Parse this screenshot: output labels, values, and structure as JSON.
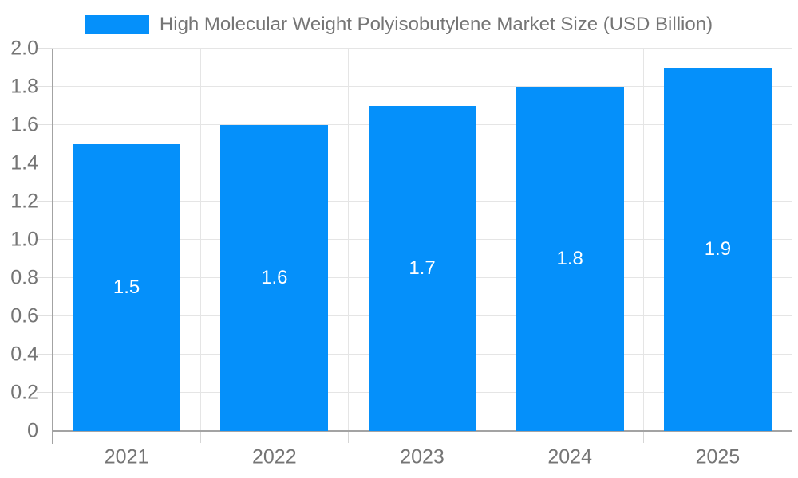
{
  "chart_data": {
    "type": "bar",
    "title": "High Molecular Weight Polyisobutylene Market Size (USD Billion)",
    "series_name": "High Molecular Weight Polyisobutylene Market Size (USD Billion)",
    "categories": [
      "2021",
      "2022",
      "2023",
      "2024",
      "2025"
    ],
    "values": [
      1.5,
      1.6,
      1.7,
      1.8,
      1.9
    ],
    "value_labels": [
      "1.5",
      "1.6",
      "1.7",
      "1.8",
      "1.9"
    ],
    "xlabel": "",
    "ylabel": "",
    "ylim": [
      0,
      2.0
    ],
    "ytick_step": 0.2,
    "ytick_labels": [
      "0",
      "0.2",
      "0.4",
      "0.6",
      "0.8",
      "1.0",
      "1.2",
      "1.4",
      "1.6",
      "1.8",
      "2.0"
    ],
    "grid": true,
    "legend_position": "top-center",
    "colors": {
      "bar": "#0590fa",
      "value_label": "#ffffff",
      "axis_text": "#757575",
      "grid_line": "#e5e5e5",
      "axis_line": "#a3a3a3"
    }
  }
}
